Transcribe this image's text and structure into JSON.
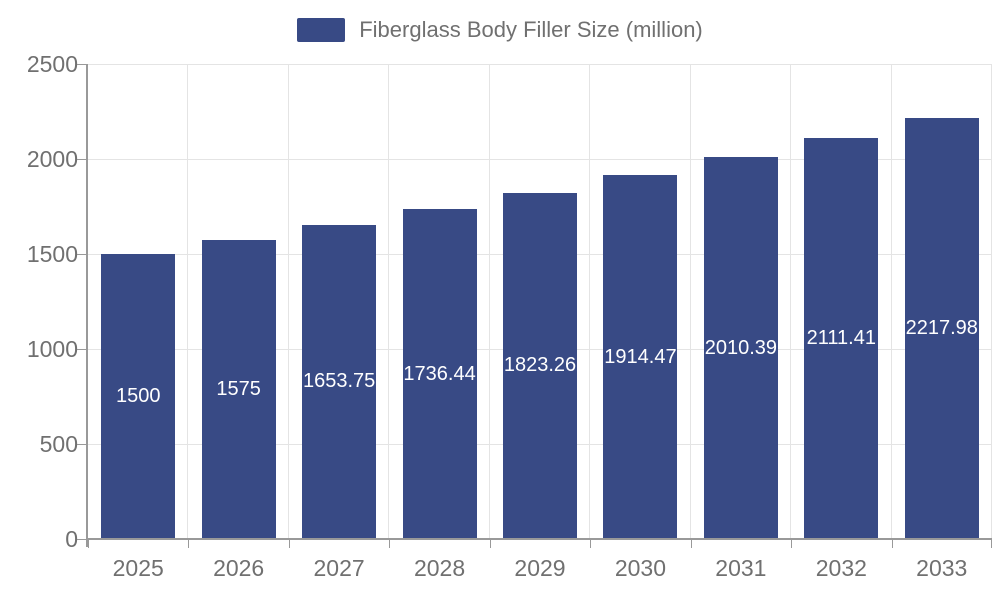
{
  "legend": {
    "label": "Fiberglass Body Filler Size (million)"
  },
  "chart_data": {
    "type": "bar",
    "title": "Fiberglass Body Filler Size (million)",
    "xlabel": "",
    "ylabel": "",
    "categories": [
      "2025",
      "2026",
      "2027",
      "2028",
      "2029",
      "2030",
      "2031",
      "2032",
      "2033"
    ],
    "values": [
      1500,
      1575,
      1653.75,
      1736.44,
      1823.26,
      1914.47,
      2010.39,
      2111.41,
      2217.98
    ],
    "ylim": [
      0,
      2500
    ],
    "ytick_step": 500,
    "grid": true,
    "legend_position": "top-center",
    "bar_label_position": "inside-center",
    "colors": {
      "bar": "#384A85",
      "grid": "#E4E4E4",
      "axis": "#999999",
      "tick_text": "#707070",
      "bar_label_text": "#FFFFFF",
      "background": "#FFFFFF"
    }
  }
}
